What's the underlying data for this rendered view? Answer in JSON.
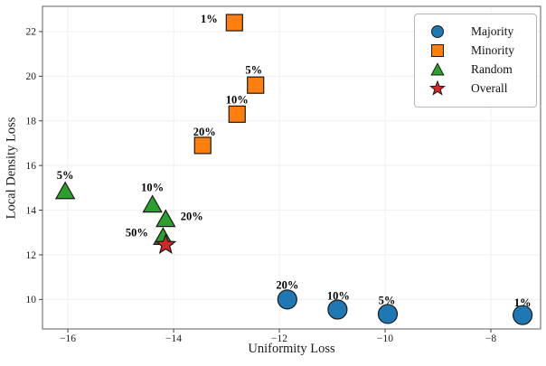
{
  "chart_data": {
    "type": "scatter",
    "title": "",
    "xlabel": "Uniformity Loss",
    "ylabel": "Local Density Loss",
    "xlim": [
      -16.48,
      -7.06
    ],
    "ylim": [
      8.68,
      23.13
    ],
    "xticks": [
      -16,
      -14,
      -12,
      -10,
      -8
    ],
    "yticks": [
      10,
      12,
      14,
      16,
      18,
      20,
      22
    ],
    "grid": true,
    "legend_position": "upper right",
    "series": [
      {
        "name": "Majority",
        "marker": "circle",
        "color": "#1f77b4",
        "points": [
          {
            "label": "20%",
            "x": -11.85,
            "y": 10.0,
            "label_dx": 0,
            "label_dy": -16
          },
          {
            "label": "10%",
            "x": -10.9,
            "y": 9.55,
            "label_dx": 1,
            "label_dy": -15
          },
          {
            "label": "5%",
            "x": -9.95,
            "y": 9.35,
            "label_dx": -1,
            "label_dy": -15
          },
          {
            "label": "1%",
            "x": -7.4,
            "y": 9.3,
            "label_dx": 0,
            "label_dy": -14
          }
        ]
      },
      {
        "name": "Minority",
        "marker": "square",
        "color": "#ff7f0e",
        "points": [
          {
            "label": "1%",
            "x": -12.85,
            "y": 22.4,
            "label_dx": -28,
            "label_dy": -4
          },
          {
            "label": "5%",
            "x": -12.45,
            "y": 19.6,
            "label_dx": -2,
            "label_dy": -17
          },
          {
            "label": "10%",
            "x": -12.8,
            "y": 18.3,
            "label_dx": 0,
            "label_dy": -16
          },
          {
            "label": "20%",
            "x": -13.45,
            "y": 16.9,
            "label_dx": 2,
            "label_dy": -15
          }
        ]
      },
      {
        "name": "Random",
        "marker": "triangle",
        "color": "#2ca02c",
        "points": [
          {
            "label": "5%",
            "x": -16.05,
            "y": 14.85,
            "label_dx": 0,
            "label_dy": -18
          },
          {
            "label": "10%",
            "x": -14.4,
            "y": 14.25,
            "label_dx": 0,
            "label_dy": -19
          },
          {
            "label": "20%",
            "x": -14.15,
            "y": 13.6,
            "label_dx": 29,
            "label_dy": -3
          },
          {
            "label": "50%",
            "x": -14.2,
            "y": 12.8,
            "label_dx": -29,
            "label_dy": -5
          }
        ]
      },
      {
        "name": "Overall",
        "marker": "star",
        "color": "#d62728",
        "points": [
          {
            "label": "",
            "x": -14.15,
            "y": 12.45,
            "label_dx": 0,
            "label_dy": 0
          }
        ]
      }
    ]
  },
  "style_colors": {
    "marker_edge": "#1a1a1a",
    "grid": "#efefef",
    "spine": "#7a7a7a",
    "tick": "#404040",
    "text": "#1a1a1a"
  }
}
